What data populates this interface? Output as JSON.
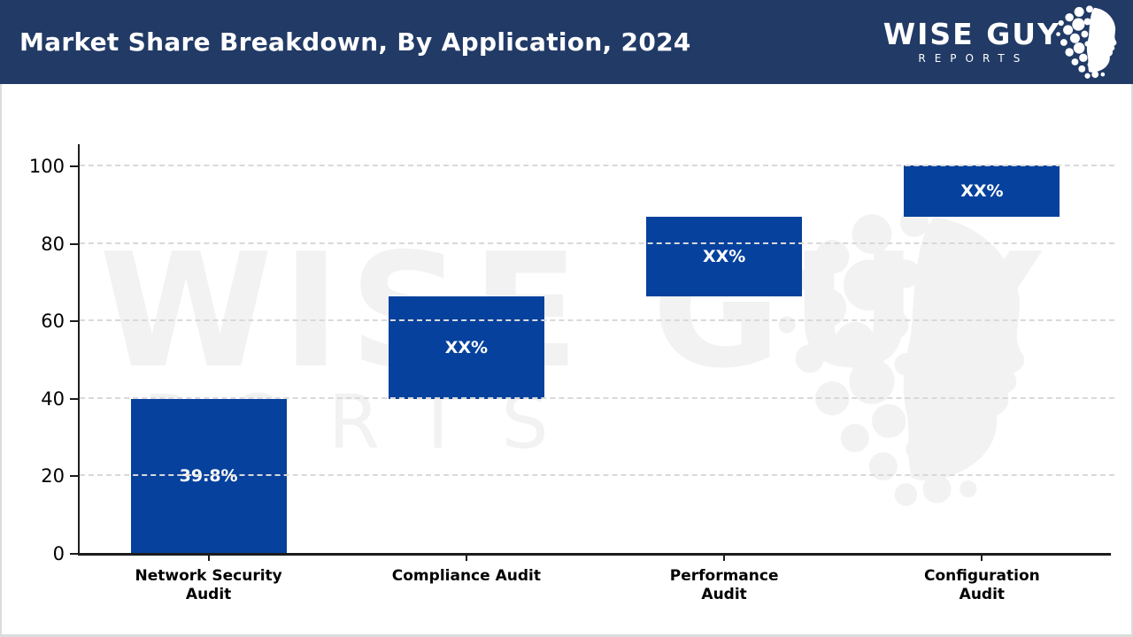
{
  "header": {
    "title": "Market Share Breakdown, By Application, 2024",
    "logo": {
      "line1": "WISE GUY",
      "line2": "REPORTS"
    }
  },
  "watermark": {
    "line1": "WISE GUY",
    "line2": "PORTS"
  },
  "colors": {
    "header_bg": "#213a66",
    "bar": "#06419d",
    "grid": "#d9d9d9",
    "axis": "#1c1c1c",
    "watermark": "#f2f2f2",
    "bar_label_text": "#ffffff"
  },
  "chart_data": {
    "type": "bar",
    "variant": "floating-waterfall-percent",
    "title": "Market Share Breakdown, By Application, 2024",
    "categories": [
      "Network Security Audit",
      "Compliance Audit",
      "Performance Audit",
      "Configuration Audit"
    ],
    "bars": [
      {
        "category": "Network Security Audit",
        "start": 0,
        "end": 39.8,
        "label": "39.8%"
      },
      {
        "category": "Compliance Audit",
        "start": 39.8,
        "end": 66.3,
        "label": "XX%"
      },
      {
        "category": "Performance Audit",
        "start": 66.3,
        "end": 86.9,
        "label": "XX%"
      },
      {
        "category": "Configuration Audit",
        "start": 86.9,
        "end": 100,
        "label": "XX%"
      }
    ],
    "xlabel": "",
    "ylabel": "",
    "ylim": [
      0,
      100
    ],
    "yticks": [
      0,
      20,
      40,
      60,
      80,
      100
    ],
    "grid": "horizontal dashed",
    "legend": null
  }
}
